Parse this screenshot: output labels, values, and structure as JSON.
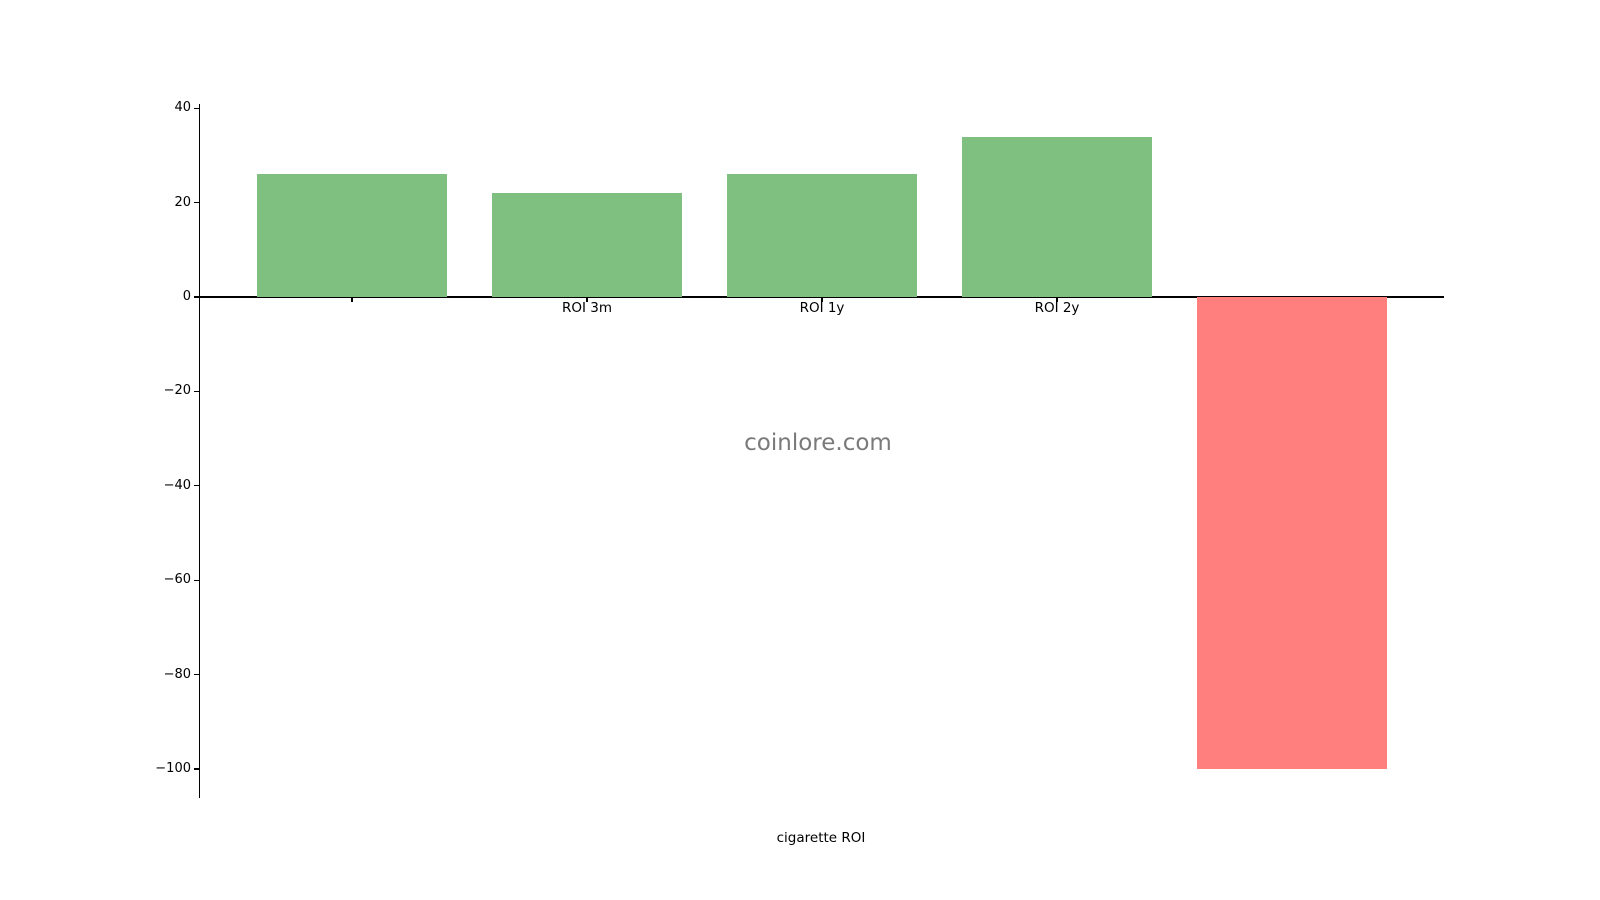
{
  "page": {
    "background": "#ffffff"
  },
  "watermark": {
    "text": "coinlore.com",
    "color": "#7a7a7a"
  },
  "chart_data": {
    "type": "bar",
    "title": "",
    "xlabel": "cigarette ROI",
    "ylabel": "",
    "categories": [
      "",
      "ROI 3m",
      "ROI 1y",
      "ROI 2y",
      ""
    ],
    "values": [
      26,
      22,
      26,
      34,
      -100
    ],
    "x_tick_visible": [
      true,
      true,
      true,
      true,
      false
    ],
    "y_ticks": [
      40,
      20,
      0,
      -20,
      -40,
      -60,
      -80,
      -100
    ],
    "ylim": [
      -106,
      41
    ],
    "grid": false,
    "legend": "none",
    "colors": {
      "positive_bar": "#7fbf7f",
      "negative_bar": "#ff7f7f",
      "axis": "#000000",
      "tick_text": "#000000"
    }
  }
}
